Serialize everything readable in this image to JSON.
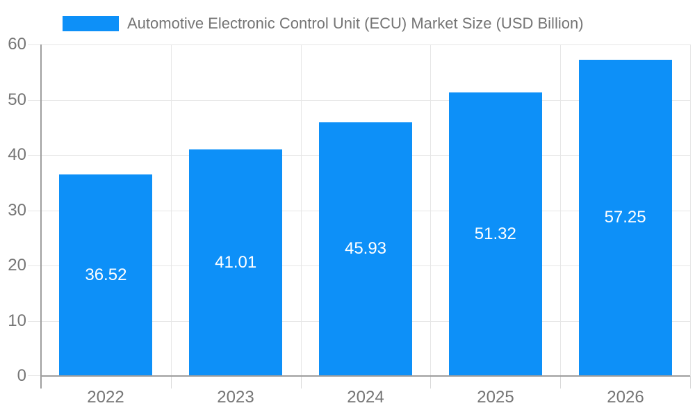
{
  "chart_data": {
    "type": "bar",
    "title": "Automotive Electronic Control Unit (ECU) Market Size (USD Billion)",
    "categories": [
      "2022",
      "2023",
      "2024",
      "2025",
      "2026"
    ],
    "values": [
      36.52,
      41.01,
      45.93,
      51.32,
      57.25
    ],
    "value_labels": [
      "36.52",
      "41.01",
      "45.93",
      "51.32",
      "57.25"
    ],
    "series_name": "Automotive Electronic Control Unit (ECU) Market Size (USD Billion)",
    "xlabel": "",
    "ylabel": "",
    "y_ticks": [
      0,
      10,
      20,
      30,
      40,
      50,
      60
    ],
    "ylim": [
      0,
      60
    ],
    "grid": true,
    "legend_position": "top-left",
    "colors": {
      "bar": "#0d90f8",
      "grid": "#e6e6e6",
      "axis": "#9e9e9e",
      "tick": "#d9d9d9",
      "text": "#757575",
      "bar_label": "#ffffff",
      "background": "#ffffff"
    }
  }
}
